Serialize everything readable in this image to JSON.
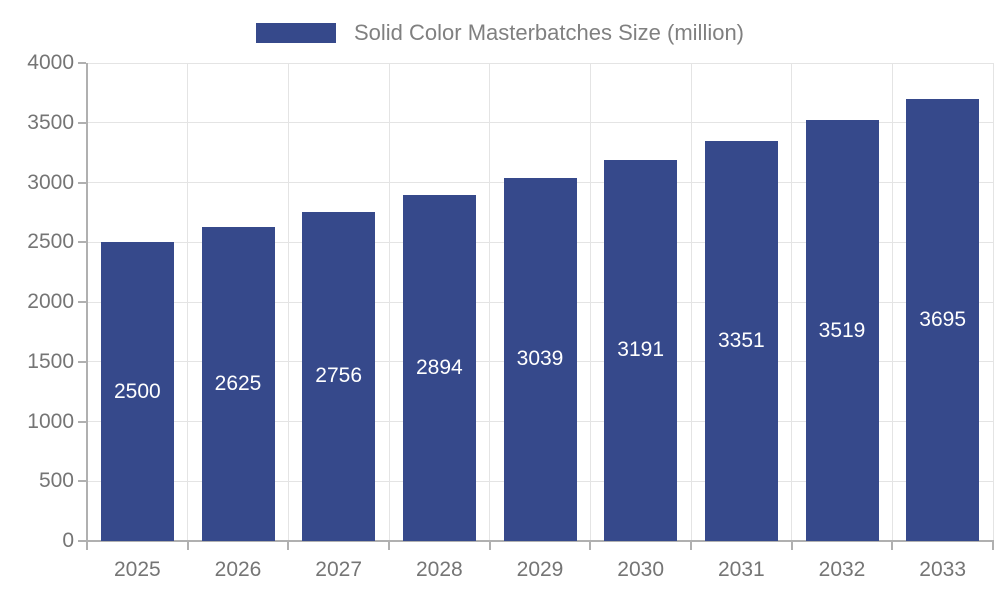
{
  "legend": {
    "label": "Solid Color Masterbatches Size (million)"
  },
  "colors": {
    "bar": "#36498b",
    "grid": "#e4e4e4",
    "axis": "#b0b0b0",
    "tick_text": "#757575",
    "legend_text": "#808080",
    "bar_label_text": "#ffffff",
    "background": "#ffffff"
  },
  "chart_data": {
    "type": "bar",
    "title": "Solid Color Masterbatches Size (million)",
    "categories": [
      "2025",
      "2026",
      "2027",
      "2028",
      "2029",
      "2030",
      "2031",
      "2032",
      "2033"
    ],
    "values": [
      2500,
      2625,
      2756,
      2894,
      3039,
      3191,
      3351,
      3519,
      3695
    ],
    "series": [
      {
        "name": "Solid Color Masterbatches Size (million)",
        "values": [
          2500,
          2625,
          2756,
          2894,
          3039,
          3191,
          3351,
          3519,
          3695
        ]
      }
    ],
    "xlabel": "",
    "ylabel": "",
    "ylim": [
      0,
      4000
    ],
    "ytick_step": 500,
    "yticks": [
      0,
      500,
      1000,
      1500,
      2000,
      2500,
      3000,
      3500,
      4000
    ],
    "grid": true,
    "legend_position": "top-center",
    "bar_labels": true,
    "bar_label_position": "center"
  }
}
